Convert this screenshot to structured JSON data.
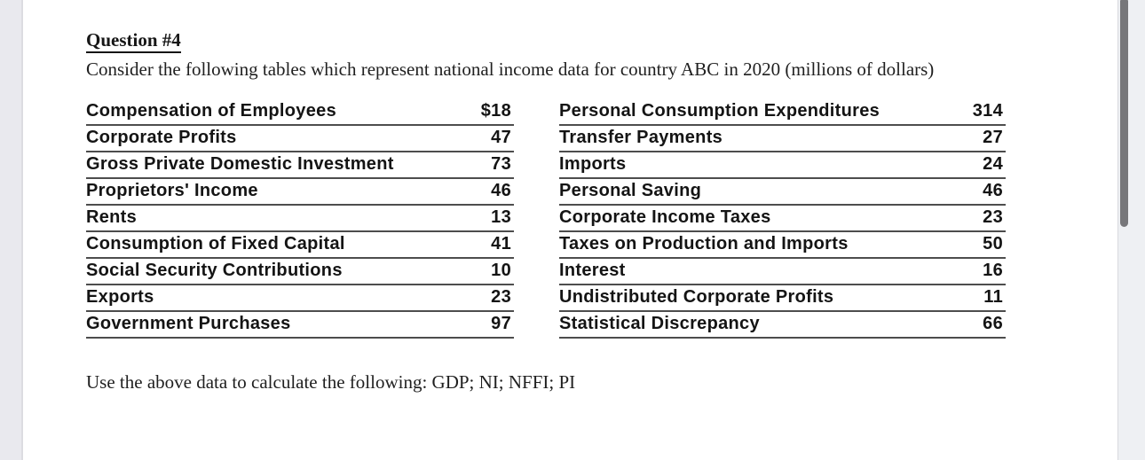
{
  "theme": {
    "page_bg": "#ffffff",
    "gutter_left_bg": "#e9e9ee",
    "gutter_right_bg": "#eef0f3",
    "scrollbar_thumb": "#77777a",
    "row_border": "#4d4d4d",
    "text": "#1f1f1f"
  },
  "document": {
    "heading": "Question #4",
    "intro": "Consider the following tables which represent national income data for country ABC in 2020 (millions of dollars)",
    "instruction": "Use the above data to calculate the following: GDP; NI; NFFI; PI"
  },
  "tables": {
    "left": {
      "rows": [
        {
          "label": "Compensation of Employees",
          "value": "$18"
        },
        {
          "label": "Corporate Profits",
          "value": "47"
        },
        {
          "label": "Gross Private Domestic Investment",
          "value": "73"
        },
        {
          "label": "Proprietors' Income",
          "value": "46"
        },
        {
          "label": "Rents",
          "value": "13"
        },
        {
          "label": "Consumption of Fixed Capital",
          "value": "41"
        },
        {
          "label": "Social Security Contributions",
          "value": "10"
        },
        {
          "label": "Exports",
          "value": "23"
        },
        {
          "label": "Government Purchases",
          "value": "97"
        }
      ]
    },
    "right": {
      "rows": [
        {
          "label": "Personal Consumption Expenditures",
          "value": "314"
        },
        {
          "label": "Transfer Payments",
          "value": "27"
        },
        {
          "label": "Imports",
          "value": "24"
        },
        {
          "label": "Personal Saving",
          "value": "46"
        },
        {
          "label": "Corporate Income Taxes",
          "value": "23"
        },
        {
          "label": "Taxes on Production and Imports",
          "value": "50"
        },
        {
          "label": "Interest",
          "value": "16"
        },
        {
          "label": "Undistributed Corporate Profits",
          "value": "11"
        },
        {
          "label": "Statistical Discrepancy",
          "value": "66"
        }
      ]
    }
  }
}
